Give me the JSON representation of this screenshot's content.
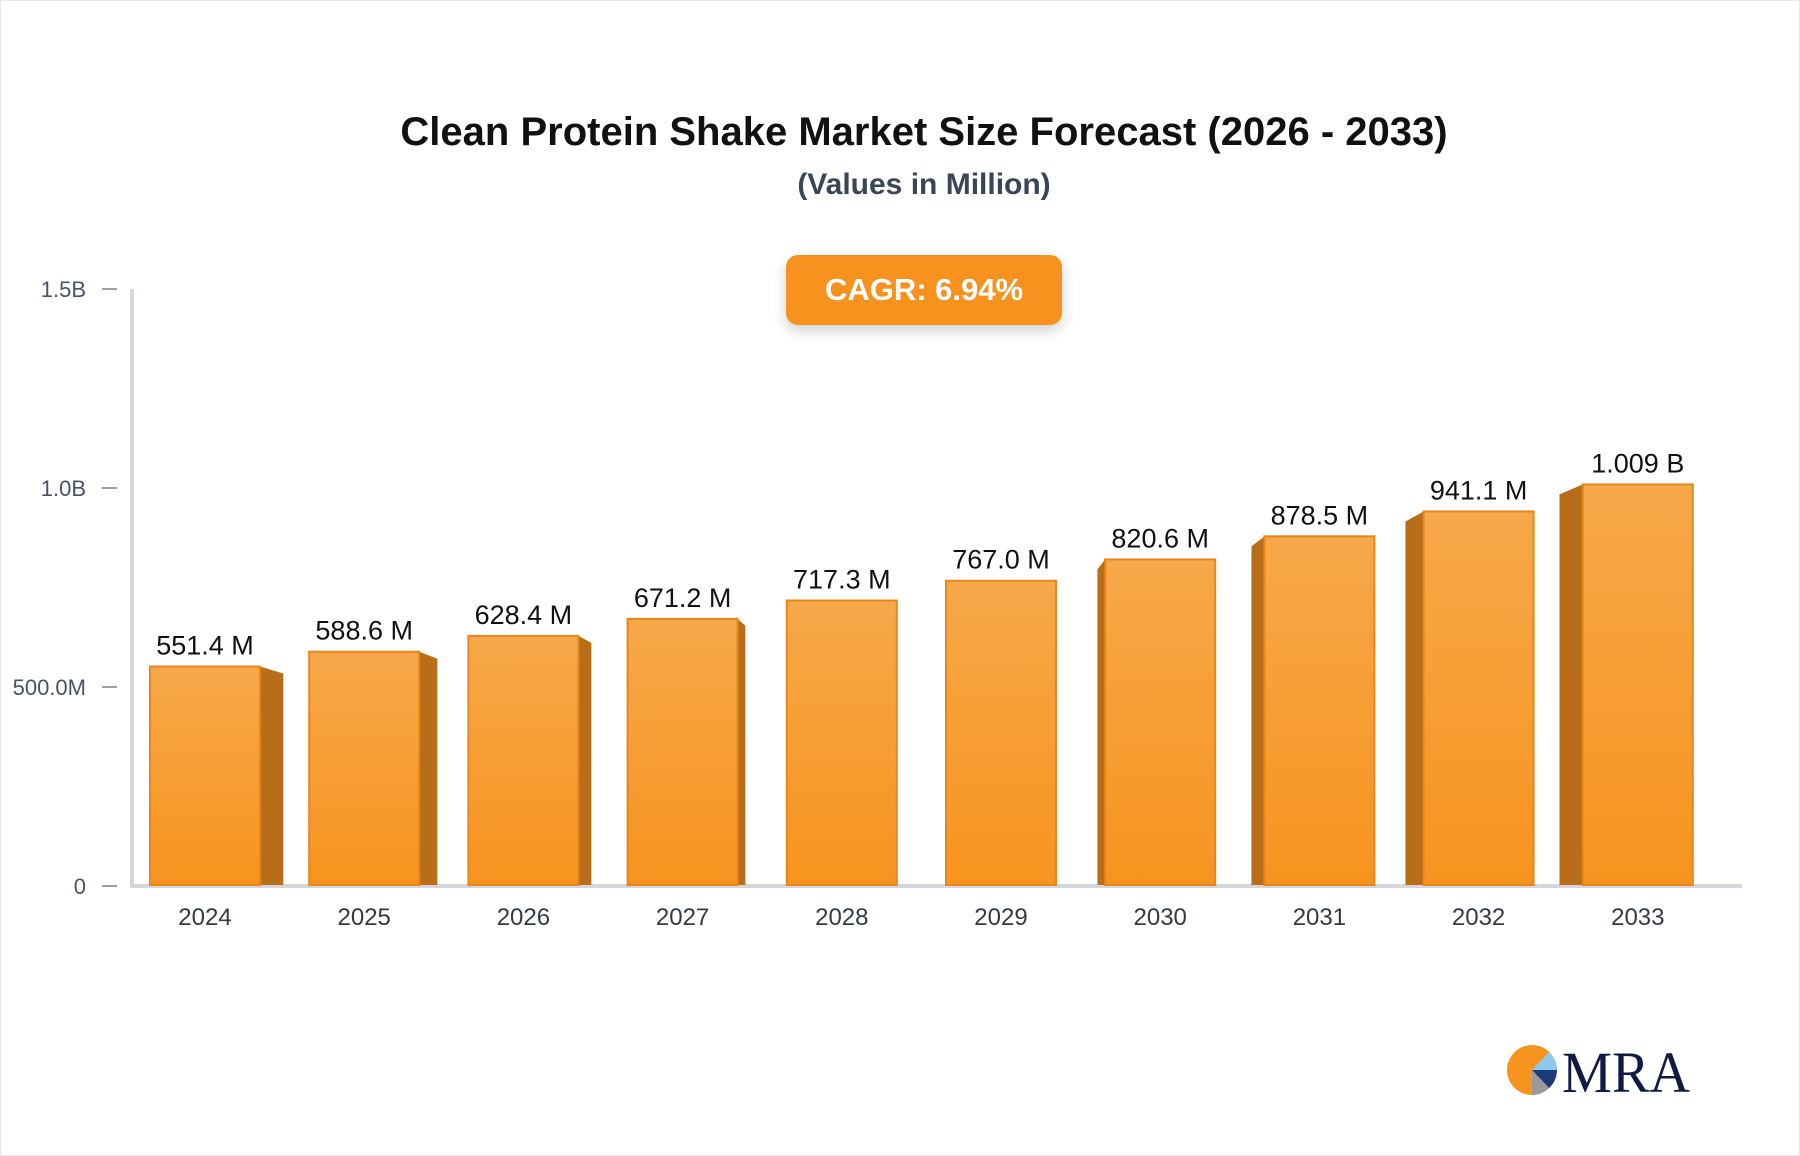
{
  "chart_data": {
    "type": "bar",
    "title": "Clean Protein Shake Market Size Forecast (2026 - 2033)",
    "subtitle": "(Values in Million)",
    "annotation": "CAGR: 6.94%",
    "categories": [
      "2024",
      "2025",
      "2026",
      "2027",
      "2028",
      "2029",
      "2030",
      "2031",
      "2032",
      "2033"
    ],
    "values": [
      551.4,
      588.6,
      628.4,
      671.2,
      717.3,
      767.0,
      820.6,
      878.5,
      941.1,
      1009
    ],
    "data_labels": [
      "551.4 M",
      "588.6 M",
      "628.4 M",
      "671.2 M",
      "717.3 M",
      "767.0 M",
      "820.6 M",
      "878.5 M",
      "941.1 M",
      "1.009 B"
    ],
    "unit": "Million",
    "ylim": [
      0,
      1500
    ],
    "yticks": [
      0,
      500,
      1000,
      1500
    ],
    "ytick_labels": [
      "0",
      "500.0M",
      "1.0B",
      "1.5B"
    ],
    "grid": false,
    "colors": {
      "bar": "#f7941f",
      "bar_top": "#f7a84a",
      "bar_side": "#b86d18",
      "cagr": "#f7921e"
    }
  },
  "logo": {
    "text": "MRA"
  }
}
